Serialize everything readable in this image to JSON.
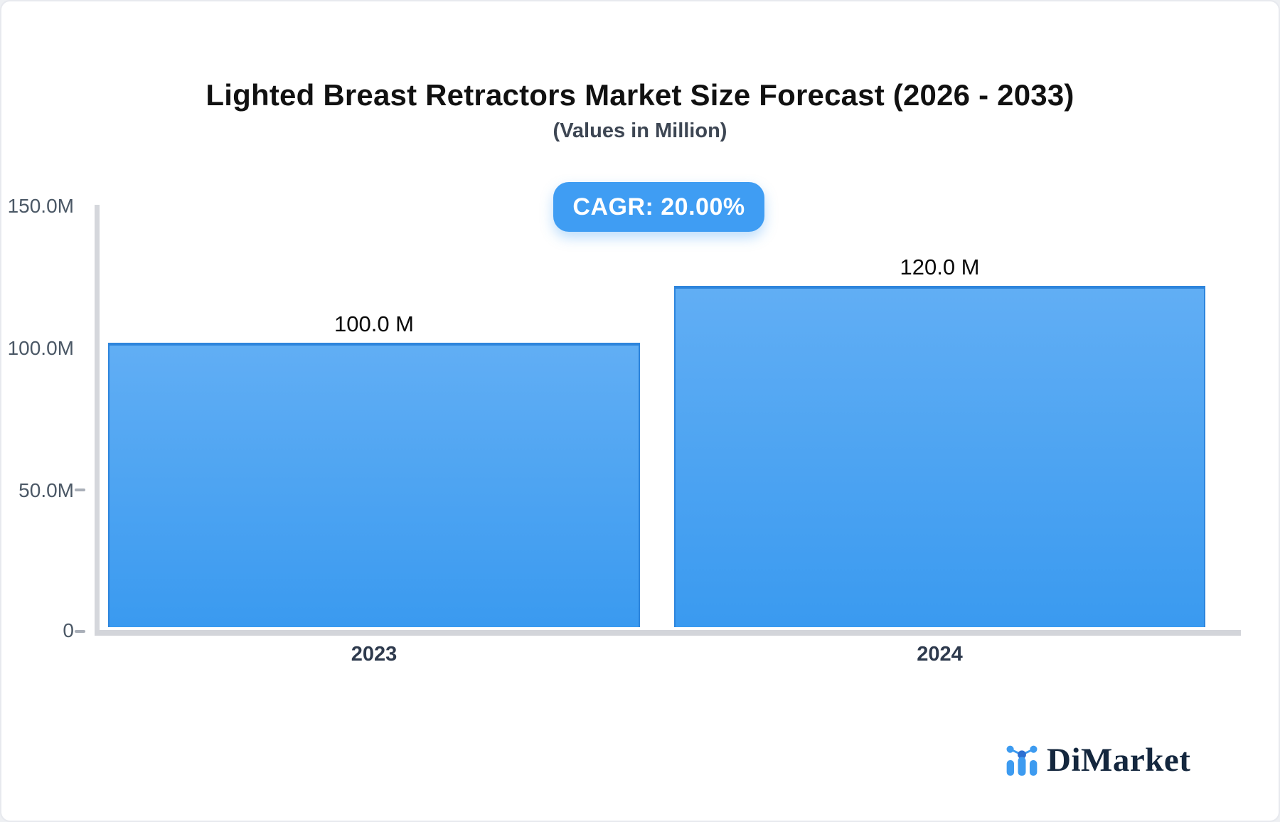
{
  "chart_data": {
    "type": "bar",
    "title": "Lighted Breast Retractors Market Size Forecast (2026 - 2033)",
    "subtitle": "(Values in Million)",
    "cagr_label": "CAGR: 20.00%",
    "categories": [
      "2023",
      "2024"
    ],
    "values": [
      100,
      120
    ],
    "value_labels": [
      "100.0 M",
      "120.0 M"
    ],
    "y_tick_labels": [
      "150.0M",
      "100.0M",
      "50.0M",
      "0"
    ],
    "ylim": [
      0,
      150
    ],
    "xlabel": "",
    "ylabel": "",
    "grid": "off",
    "legend": "none",
    "bar_color_top": "#61aef4",
    "bar_color_bottom": "#3a9af0",
    "bar_border_color": "#2e85dc",
    "badge_color": "#3f9df3",
    "axis_color": "#d5d7dc"
  },
  "branding": {
    "logo_text": "DiMarket",
    "logo_icon": "bar-chart-logo-icon",
    "logo_icon_color": "#3d9bf0",
    "logo_icon_accent": "#2d6fd1",
    "logo_text_color": "#14273e"
  }
}
